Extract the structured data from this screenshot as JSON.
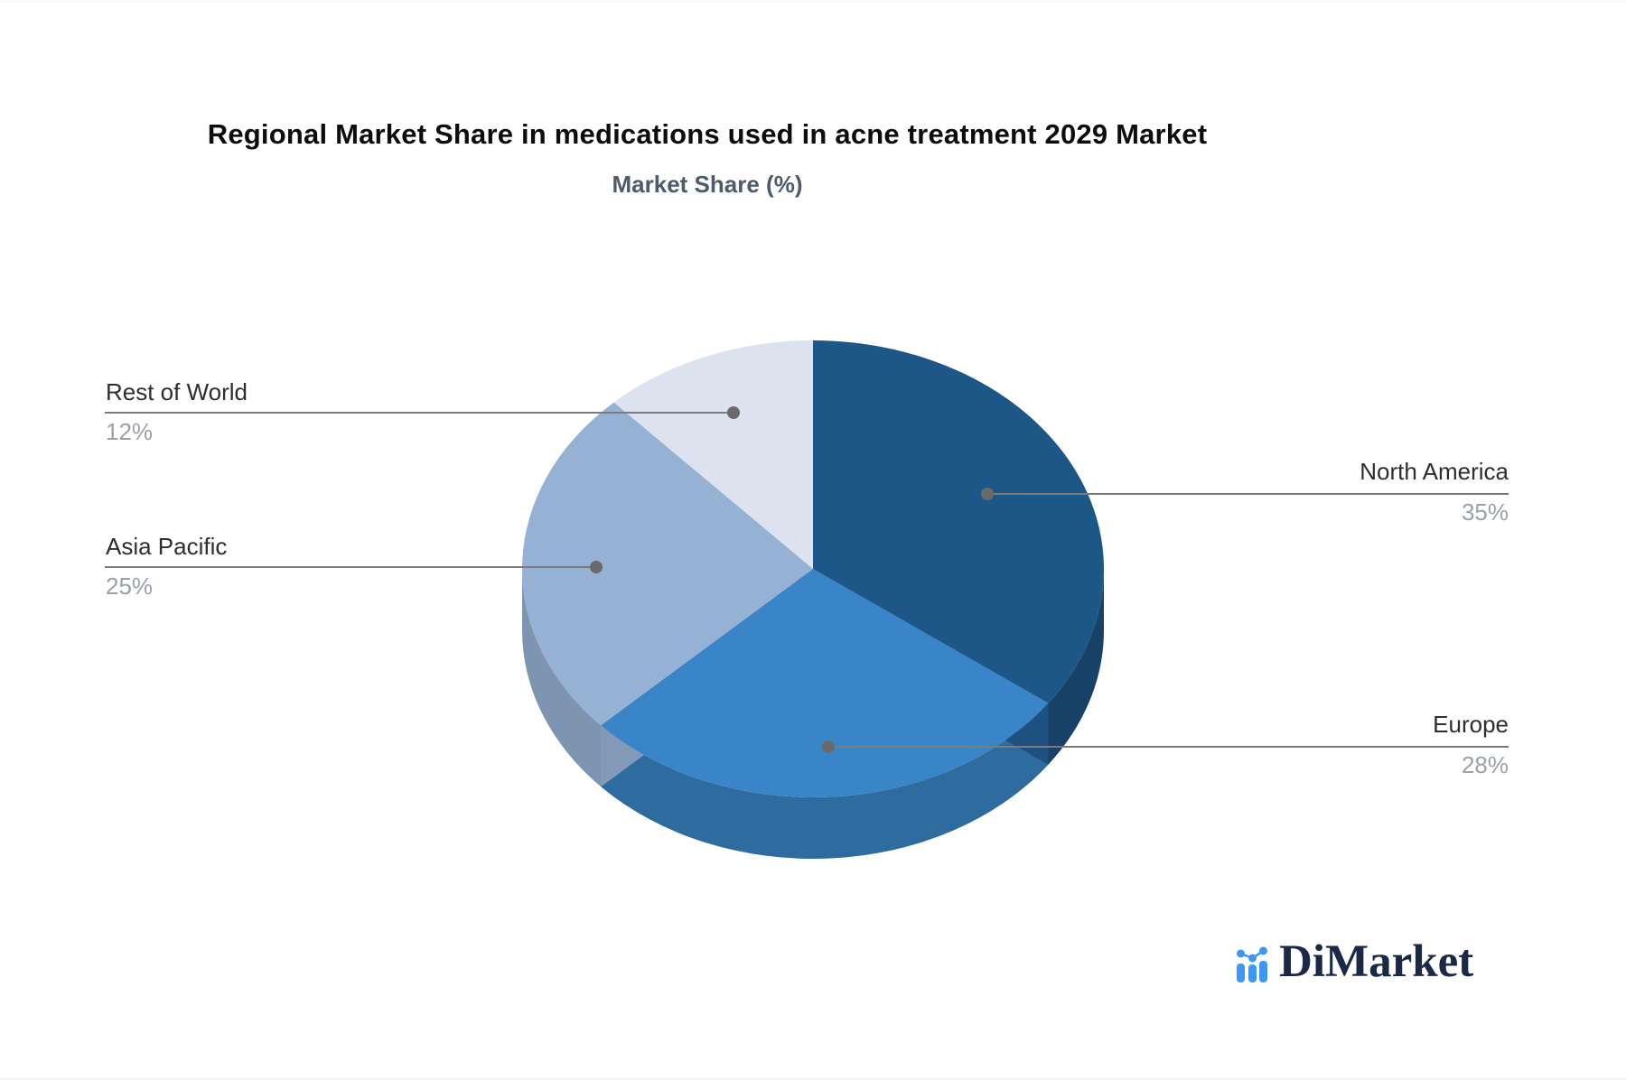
{
  "chart_data": {
    "type": "pie",
    "style": "3d",
    "title": "Regional Market Share in medications used in acne treatment 2029 Market",
    "subtitle": "Market Share (%)",
    "unit": "%",
    "categories": [
      "North America",
      "Europe",
      "Asia Pacific",
      "Rest of World"
    ],
    "values": [
      35,
      28,
      25,
      12
    ],
    "labels": [
      "35%",
      "28%",
      "25%",
      "12%"
    ],
    "colors": [
      "#1d5787",
      "#3a85c7",
      "#95b1d3",
      "#dce3ef"
    ],
    "side_colors": [
      "#174166",
      "#2e6b9f",
      "#7e95b2",
      "#c9d2e0"
    ],
    "face_colors": [
      "#1e5080",
      "#2e6b9f",
      "#8299b8",
      "#c9d2e0"
    ],
    "start_angle_deg": 0,
    "direction": "clockwise",
    "legend": "none",
    "label_style": "callout-lines",
    "leader_line_color": "#7b7b7b",
    "leader_dot_color": "#6a6a6a"
  },
  "logo": {
    "text": "DiMarket",
    "icon": "bar-line-chart-icon",
    "icon_color": "#3e97f3",
    "text_color": "#1a2946"
  }
}
